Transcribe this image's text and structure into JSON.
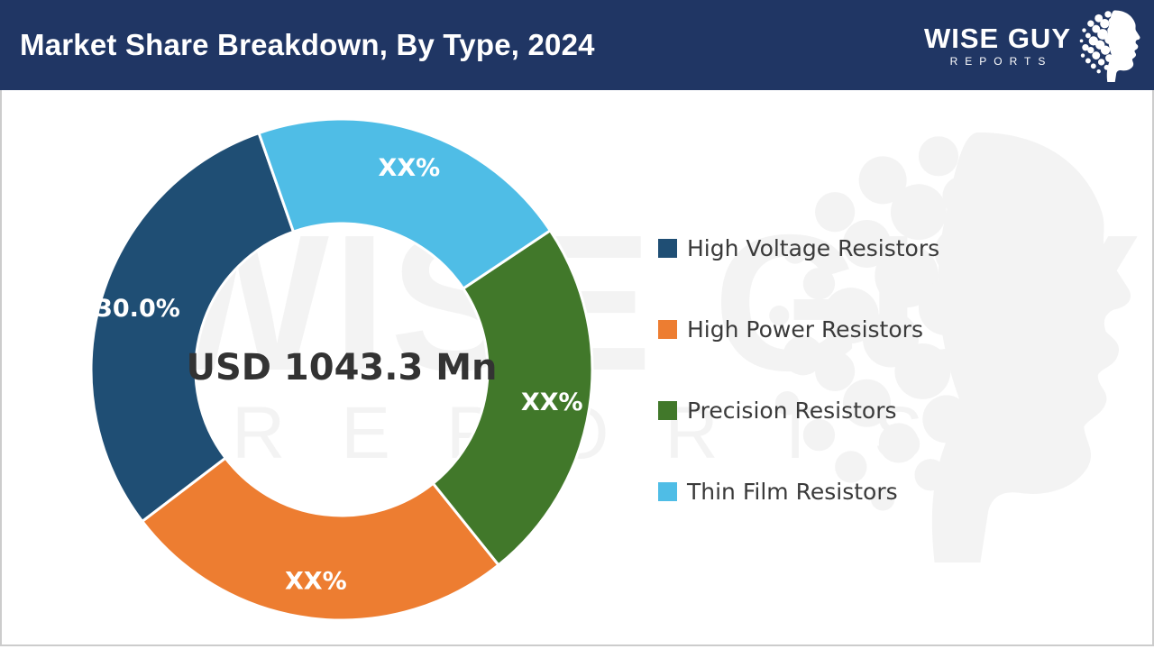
{
  "header": {
    "title": "Market Share Breakdown, By Type, 2024",
    "bg_color": "#203664",
    "logo": {
      "line1": "WISE GUY",
      "line2": "REPORTS"
    }
  },
  "watermark": {
    "line1": "WISE GUY",
    "line2": "REPORTS"
  },
  "chart_data": {
    "type": "pie",
    "subtype": "donut",
    "title": "Market Share Breakdown, By Type, 2024",
    "center_label": "USD 1043.3 Mn",
    "start_angle_deg": 109.3,
    "direction": "counterclockwise",
    "outer_radius_px": 278,
    "inner_radius_px": 162,
    "label_radius_px": 236,
    "separator_color": "#ffffff",
    "legend_position": "right",
    "segments": [
      {
        "label": "High Voltage Resistors",
        "display_pct": "30.0%",
        "value_pct": 30.0,
        "color": "#1F4E74"
      },
      {
        "label": "High Power Resistors",
        "display_pct": "XX%",
        "value_pct": 25.4,
        "color": "#ED7D31"
      },
      {
        "label": "Precision Resistors",
        "display_pct": "XX%",
        "value_pct": 23.6,
        "color": "#41782A"
      },
      {
        "label": "Thin Film Resistors",
        "display_pct": "XX%",
        "value_pct": 21.0,
        "color": "#4FBDE6"
      }
    ]
  }
}
